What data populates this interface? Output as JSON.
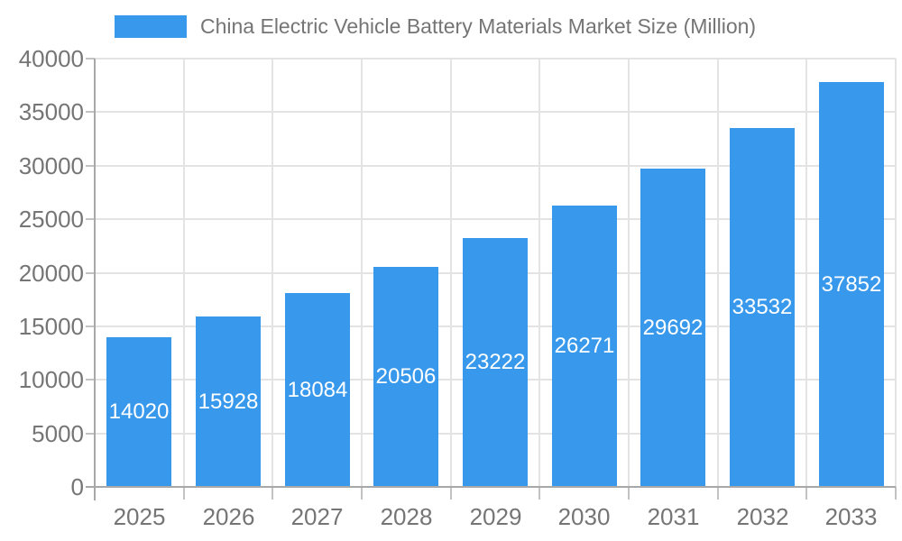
{
  "legend": {
    "label": "China Electric Vehicle Battery Materials Market Size (Million)"
  },
  "chart_data": {
    "type": "bar",
    "title": "China Electric Vehicle Battery Materials Market Size (Million)",
    "series_name": "China Electric Vehicle Battery Materials Market Size (Million)",
    "categories": [
      "2025",
      "2026",
      "2027",
      "2028",
      "2029",
      "2030",
      "2031",
      "2032",
      "2033"
    ],
    "values": [
      14020,
      15928,
      18084,
      20506,
      23222,
      26271,
      29692,
      33532,
      37852
    ],
    "xlabel": "",
    "ylabel": "",
    "ylim": [
      0,
      40000
    ],
    "y_ticks": [
      0,
      5000,
      10000,
      15000,
      20000,
      25000,
      30000,
      35000,
      40000
    ],
    "grid": true,
    "legend_position": "top",
    "value_label_position": "inside-center",
    "colors": {
      "bar": "#3899EC",
      "axis_label": "#757575",
      "value_label": "#FFFFFF",
      "gridline": "#E3E3E3",
      "axis_line": "#A8A8A8",
      "tick": "#C2C2C2",
      "background": "#FFFFFF"
    }
  }
}
